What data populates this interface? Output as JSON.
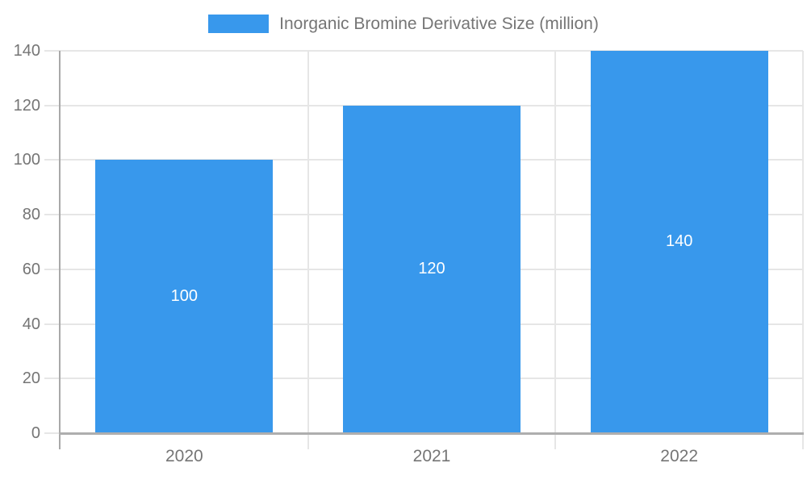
{
  "chart_data": {
    "type": "bar",
    "title": "",
    "categories": [
      "2020",
      "2021",
      "2022"
    ],
    "series": [
      {
        "name": "Inorganic Bromine Derivative Size (million)",
        "values": [
          100,
          120,
          140
        ]
      }
    ],
    "bar_labels": [
      "100",
      "120",
      "140"
    ],
    "yticks": [
      0,
      20,
      40,
      60,
      80,
      100,
      120,
      140
    ],
    "ylim": [
      0,
      140
    ],
    "xlabel": "",
    "ylabel": "",
    "grid": true,
    "legend_position": "top"
  },
  "legend": {
    "label": "Inorganic Bromine Derivative Size (million)"
  },
  "colors": {
    "bar": "#3898ec",
    "text": "#757575",
    "bar_label": "#ffffff",
    "gridline": "#e6e6e6",
    "y_axis_line": "#a9a9a9",
    "x_axis_line": "#aeaeae"
  }
}
